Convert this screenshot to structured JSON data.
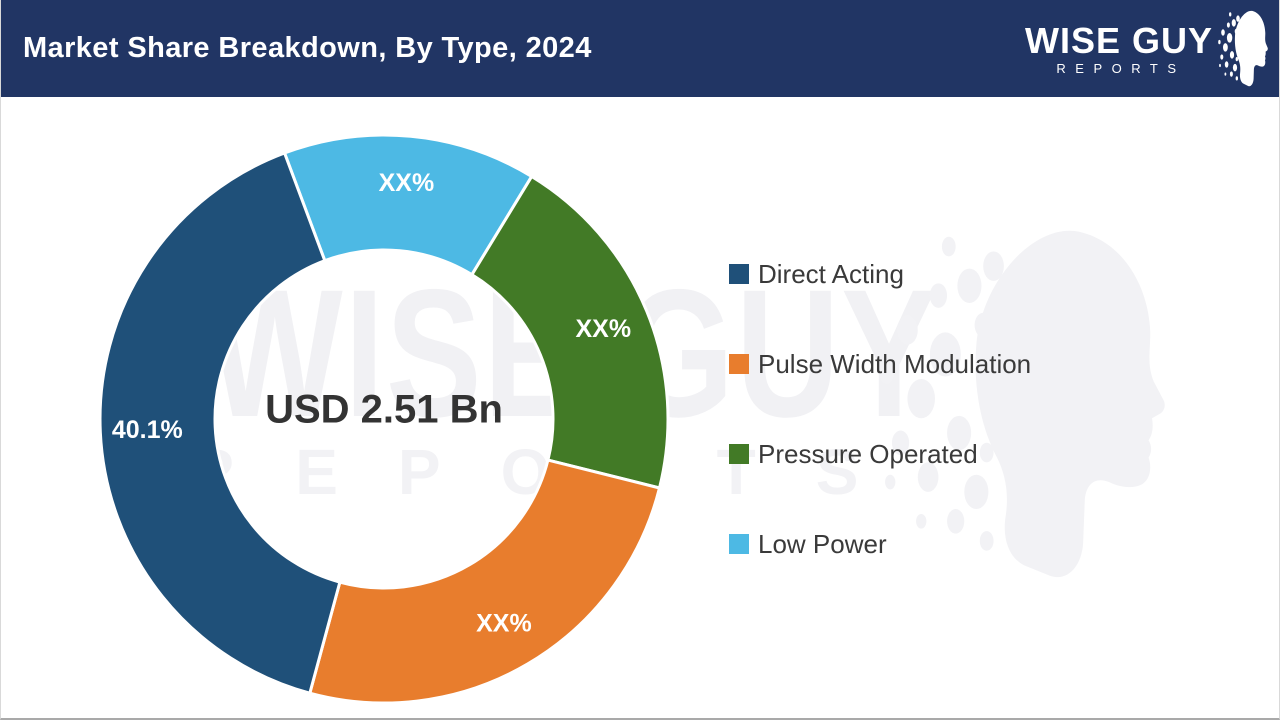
{
  "header": {
    "title": "Market Share Breakdown, By Type, 2024",
    "bg_color": "#213564",
    "logo": {
      "name": "WISE GUY",
      "sub": "REPORTS"
    }
  },
  "watermark": {
    "line1": "WISE GUY",
    "line2": "REPORTS"
  },
  "chart_data": {
    "type": "pie",
    "subtype": "donut",
    "title": "Market Share Breakdown, By Type, 2024",
    "center_label": "USD 2.51 Bn",
    "total_market_value": "USD 2.51 Bn",
    "year": "2024",
    "unit": "percent of market share",
    "start_angle_deg_clockwise_from_top": 339.5,
    "inner_radius_ratio": 0.595,
    "outer_radius_px": 284,
    "label_radius_px": 237,
    "segments_clockwise": [
      {
        "name": "Low Power",
        "value_pct": 14.4,
        "display_label": "XX%",
        "color": "#4db9e4"
      },
      {
        "name": "Pressure Operated",
        "value_pct": 20.2,
        "display_label": "XX%",
        "color": "#427a26"
      },
      {
        "name": "Pulse Width Modulation",
        "value_pct": 25.3,
        "display_label": "XX%",
        "color": "#e87d2d"
      },
      {
        "name": "Direct Acting",
        "value_pct": 40.1,
        "display_label": "40.1%",
        "color": "#1f5079"
      }
    ],
    "legend": [
      {
        "label": "Direct Acting",
        "color": "#1f5079"
      },
      {
        "label": "Pulse Width Modulation",
        "color": "#e87d2d"
      },
      {
        "label": "Pressure Operated",
        "color": "#427a26"
      },
      {
        "label": "Low Power",
        "color": "#4db9e4"
      }
    ],
    "legend_position": "right",
    "separator_color": "#ffffff"
  },
  "colors": {
    "header_bg": "#213564",
    "page_bg": "#ffffff",
    "center_text": "#333333",
    "legend_text": "#3a3a3a",
    "watermark": "#f1f1f4"
  }
}
